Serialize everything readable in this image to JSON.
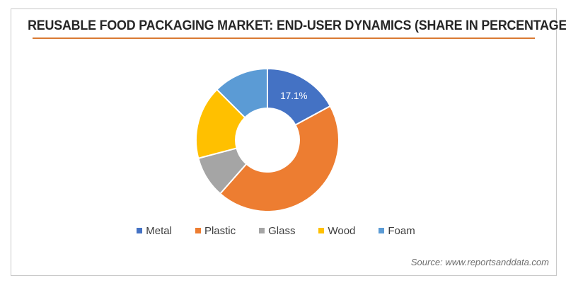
{
  "header": {
    "title": "REUSABLE FOOD PACKAGING MARKET: END-USER DYNAMICS (SHARE IN PERCENTAGE)",
    "underline_color": "#d97a33"
  },
  "chart_data": {
    "type": "pie",
    "subtype": "donut",
    "title": "REUSABLE FOOD PACKAGING MARKET: END-USER DYNAMICS (SHARE IN PERCENTAGE)",
    "start_angle_deg": 0,
    "direction": "clockwise",
    "inner_radius_ratio": 0.445,
    "legend_position": "bottom",
    "label_color": "#ffffff",
    "segments": [
      {
        "name": "Metal",
        "value": 17.1,
        "color": "#4472C4",
        "label": "17.1%"
      },
      {
        "name": "Plastic",
        "value": 44.4,
        "color": "#ED7D31",
        "label": ""
      },
      {
        "name": "Glass",
        "value": 9.4,
        "color": "#A5A5A5",
        "label": ""
      },
      {
        "name": "Wood",
        "value": 16.6,
        "color": "#FFC000",
        "label": ""
      },
      {
        "name": "Foam",
        "value": 12.5,
        "color": "#5B9BD5",
        "label": ""
      }
    ]
  },
  "footer": {
    "source": "Source: www.reportsanddata.com"
  }
}
